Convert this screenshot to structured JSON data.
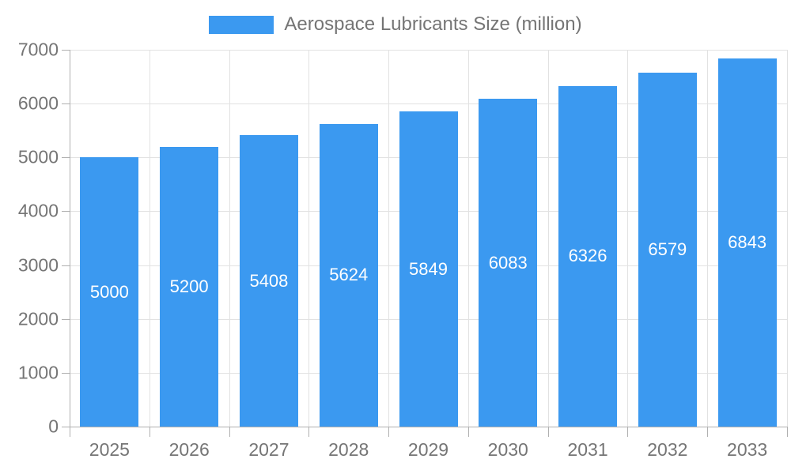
{
  "legend": {
    "label": "Aerospace Lubricants Size (million)"
  },
  "colors": {
    "bar": "#3b99f0",
    "axis_text": "#757575",
    "grid_line": "#e2e2e2",
    "axis_line": "#b0b0b0",
    "bar_label": "#ffffff"
  },
  "chart_data": {
    "type": "bar",
    "title": "Aerospace Lubricants Size (million)",
    "categories": [
      "2025",
      "2026",
      "2027",
      "2028",
      "2029",
      "2030",
      "2031",
      "2032",
      "2033"
    ],
    "values": [
      5000,
      5200,
      5408,
      5624,
      5849,
      6083,
      6326,
      6579,
      6843
    ],
    "xlabel": "",
    "ylabel": "",
    "ylim": [
      0,
      7000
    ],
    "yticks": [
      0,
      1000,
      2000,
      3000,
      4000,
      5000,
      6000,
      7000
    ],
    "grid": true,
    "legend_position": "top",
    "bar_labels_inside": true
  }
}
